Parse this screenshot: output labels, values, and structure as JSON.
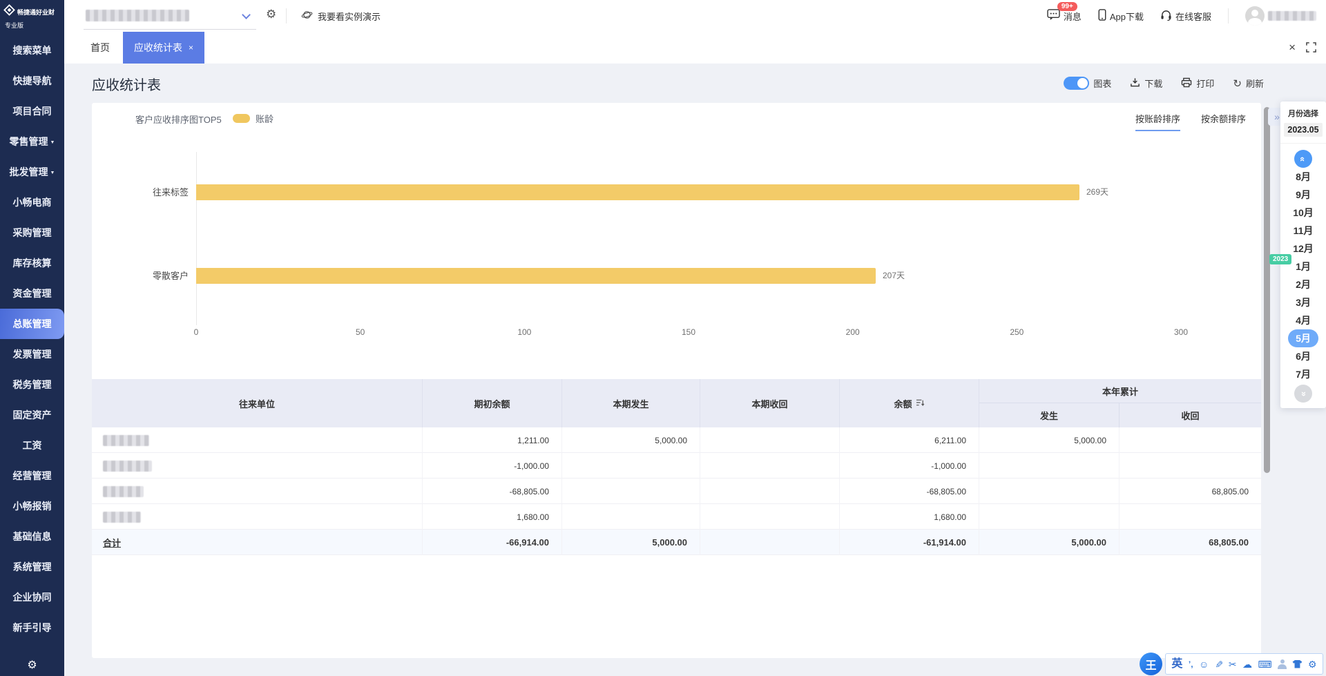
{
  "app": {
    "brand": "畅捷通好业财",
    "edition": "专业版"
  },
  "topbar": {
    "demo": "我要看实例演示",
    "messages": "消息",
    "badge": "99+",
    "app_download": "App下载",
    "support": "在线客服"
  },
  "tabs": {
    "home": "首页",
    "active": "应收统计表"
  },
  "page": {
    "title": "应收统计表",
    "chart_toggle": "图表",
    "download": "下载",
    "print": "打印",
    "refresh": "刷新"
  },
  "sidebar": {
    "items": [
      {
        "label": "搜索菜单"
      },
      {
        "label": "快捷导航"
      },
      {
        "label": "项目合同"
      },
      {
        "label": "零售管理",
        "dropdown": true
      },
      {
        "label": "批发管理",
        "dropdown": true
      },
      {
        "label": "小畅电商"
      },
      {
        "label": "采购管理"
      },
      {
        "label": "库存核算"
      },
      {
        "label": "资金管理"
      },
      {
        "label": "总账管理",
        "active": true
      },
      {
        "label": "发票管理"
      },
      {
        "label": "税务管理"
      },
      {
        "label": "固定资产"
      },
      {
        "label": "工资"
      },
      {
        "label": "经营管理"
      },
      {
        "label": "小畅报销"
      },
      {
        "label": "基础信息"
      },
      {
        "label": "系统管理"
      },
      {
        "label": "企业协同"
      },
      {
        "label": "新手引导"
      }
    ]
  },
  "chart_data": {
    "type": "bar",
    "orientation": "horizontal",
    "title": "客户应收排序图TOP5",
    "legend": [
      "账龄"
    ],
    "categories": [
      "往来标签",
      "零散客户"
    ],
    "values": [
      269,
      207
    ],
    "value_suffix": "天",
    "xlim": [
      0,
      300
    ],
    "xticks": [
      0,
      50,
      100,
      150,
      200,
      250,
      300
    ],
    "bar_color": "#F3CB68",
    "grid": false,
    "legend_position": "top-left",
    "sort_tabs": [
      {
        "label": "按账龄排序",
        "active": true
      },
      {
        "label": "按余额排序",
        "active": false
      }
    ]
  },
  "table": {
    "columns": [
      "往来单位",
      "期初余额",
      "本期发生",
      "本期收回",
      "余额"
    ],
    "group_header": "本年累计",
    "subcolumns": [
      "发生",
      "收回"
    ],
    "rows": [
      {
        "name_redacted": true,
        "values": [
          "1,211.00",
          "5,000.00",
          "",
          "6,211.00",
          "5,000.00",
          ""
        ]
      },
      {
        "name_redacted": true,
        "values": [
          "-1,000.00",
          "",
          "",
          "-1,000.00",
          "",
          ""
        ]
      },
      {
        "name_redacted": true,
        "values": [
          "-68,805.00",
          "",
          "",
          "-68,805.00",
          "",
          "68,805.00"
        ]
      },
      {
        "name_redacted": true,
        "values": [
          "1,680.00",
          "",
          "",
          "1,680.00",
          "",
          ""
        ]
      }
    ],
    "total": {
      "label": "合计",
      "values": [
        "-66,914.00",
        "5,000.00",
        "",
        "-61,914.00",
        "5,000.00",
        "68,805.00"
      ]
    }
  },
  "month_panel": {
    "title": "月份选择",
    "current": "2023.05",
    "year_badge": "2023",
    "months": [
      "8月",
      "9月",
      "10月",
      "11月",
      "12月",
      "1月",
      "2月",
      "3月",
      "4月",
      "5月",
      "6月",
      "7月"
    ],
    "selected": "5月"
  },
  "ime": {
    "logo": "王",
    "lang": "英",
    "punct": "’,"
  },
  "colors": {
    "accent": "#5B7CE4",
    "sidebar_bg": "#1D2C51",
    "bar": "#F3CB68",
    "toggle_on": "#4D96F7",
    "month_selected": "#6FABF9",
    "badge_red": "#F45B5B",
    "badge_green": "#47CDA4",
    "table_header_bg": "#E9EBF5",
    "total_row_bg": "#F6F9FE"
  },
  "icons": {
    "gear": "⚙",
    "refresh": "↻",
    "close": "×",
    "collapse": "»",
    "double_chevron": "«",
    "dropdown": "▼",
    "smiley": "☺",
    "pencil": "✎",
    "scissors": "✂",
    "cloud": "☁",
    "keyboard": "⌨"
  }
}
